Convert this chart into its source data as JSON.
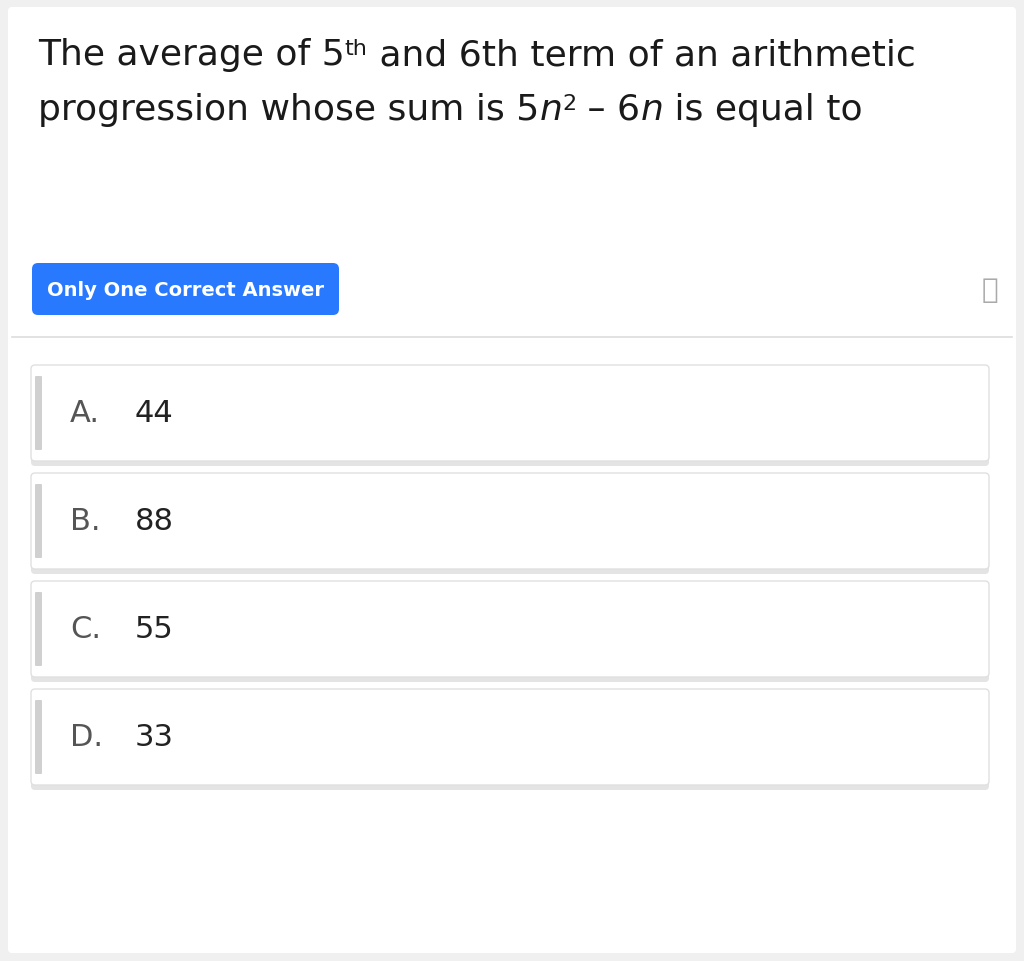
{
  "background_color": "#f0f0f0",
  "card_color": "#ffffff",
  "badge_text": "Only One Correct Answer",
  "badge_color": "#2979ff",
  "badge_text_color": "#ffffff",
  "options": [
    {
      "label": "A.",
      "value": "44"
    },
    {
      "label": "B.",
      "value": "88"
    },
    {
      "label": "C.",
      "value": "55"
    },
    {
      "label": "D.",
      "value": "33"
    }
  ],
  "option_box_color": "#ffffff",
  "option_box_border": "#e0e0e0",
  "option_label_color": "#555555",
  "option_value_color": "#222222",
  "option_left_bar_color": "#d0d0d0",
  "question_color": "#1a1a1a",
  "info_icon_color": "#aaaaaa",
  "font_size_question": 26,
  "font_size_option": 22,
  "font_size_badge": 14,
  "separator_color": "#dddddd"
}
